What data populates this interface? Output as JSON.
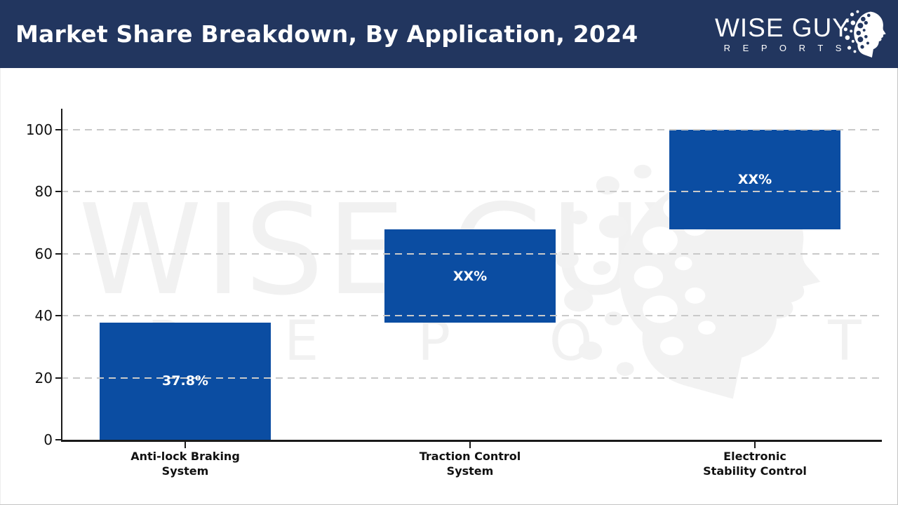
{
  "header": {
    "title": "Market Share Breakdown, By Application, 2024",
    "logo": {
      "line1": "WISE GUY",
      "line2": "R E P O R T S"
    }
  },
  "watermark": {
    "line1": "WISE GUY",
    "line2": "R E P O R T S"
  },
  "colors": {
    "header_bg": "#22365F",
    "bar_blue": "#0B4DA2",
    "bar_label_text": "#FFFFFF",
    "title_text": "#FFFFFF",
    "axis": "#1A1A1A",
    "gridline": "#C9C9C9",
    "watermark": "#F1F1F1"
  },
  "chart_data": {
    "type": "bar",
    "subtype": "waterfall (cumulative floating bars)",
    "title": "Market Share Breakdown, By Application, 2024",
    "categories": [
      "Anti-lock Braking\nSystem",
      "Traction Control\nSystem",
      "Electronic\nStability Control"
    ],
    "segments": [
      {
        "category": "Anti-lock Braking System",
        "start": 0,
        "end": 37.8,
        "label": "37.8%"
      },
      {
        "category": "Traction Control System",
        "start": 37.8,
        "end": 67.8,
        "label": "XX%"
      },
      {
        "category": "Electronic Stability Control",
        "start": 67.8,
        "end": 100,
        "label": "XX%"
      }
    ],
    "xlabel": "",
    "ylabel": "",
    "ylim": [
      0,
      100
    ],
    "yticks": [
      0,
      20,
      40,
      60,
      80,
      100
    ],
    "grid": "horizontal dashed",
    "legend": "none"
  }
}
